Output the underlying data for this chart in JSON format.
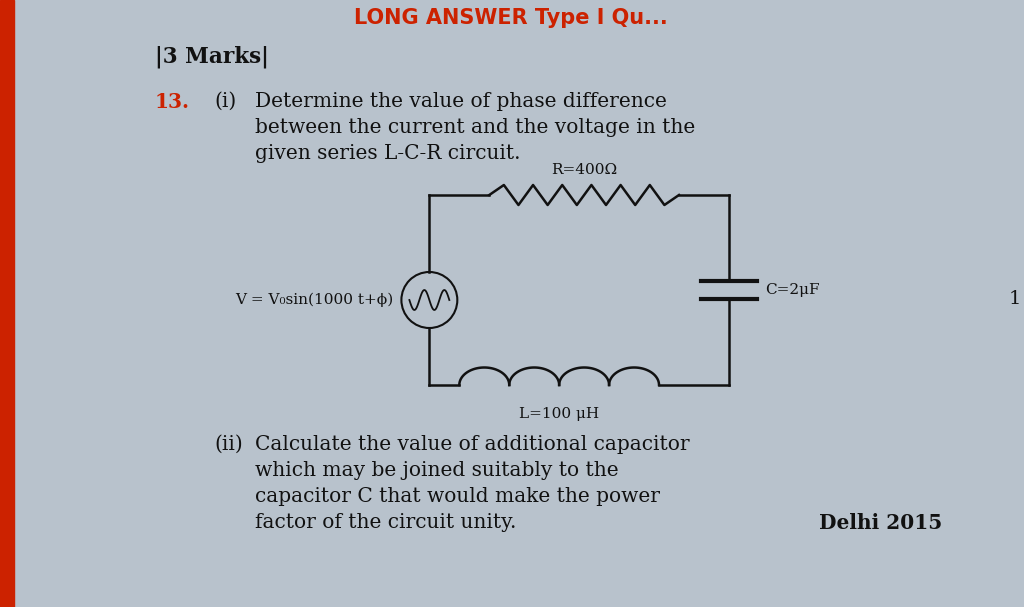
{
  "bg_color": "#b8c2cc",
  "title_text": "LONG ANSWER Type I Qu...",
  "title_color": "#cc2200",
  "marks_text": "|3 Marks|",
  "q13_num": "13.",
  "q13i_label": "(i)",
  "q13i_line1": "Determine the value of phase difference",
  "q13i_line2": "between the current and the voltage in the",
  "q13i_line3": "given series L-C-R circuit.",
  "q13ii_label": "(ii)",
  "q13ii_line1": "Calculate the value of additional capacitor",
  "q13ii_line2": "which may be joined suitably to the",
  "q13ii_line3": "capacitor C that would make the power",
  "q13ii_line4": "factor of the circuit unity.",
  "delhi_text": "Delhi 2015",
  "R_label": "R=400Ω",
  "C_label": "C=2μF",
  "L_label": "L=100 μH",
  "V_label": "V = V₀sin(1000 t+ϕ)",
  "clc": "#111111",
  "tc": "#111111",
  "red_bar": "#cc2200",
  "fs_main": 14.5,
  "fs_circuit": 11
}
